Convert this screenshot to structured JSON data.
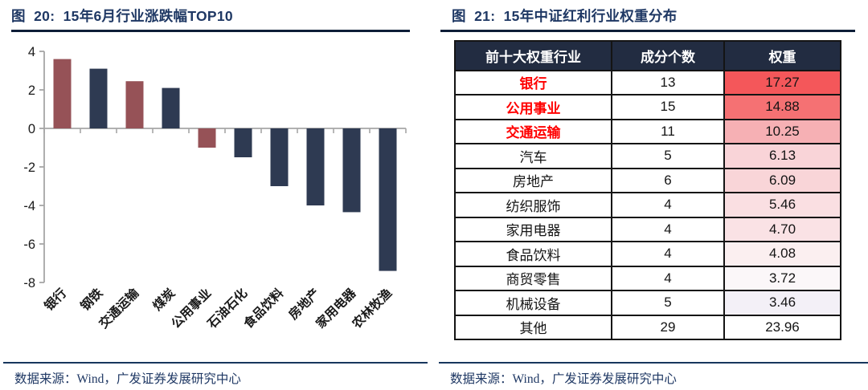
{
  "left_panel": {
    "title": "图  20:  15年6月行业涨跌幅TOP10",
    "source": "数据来源：Wind，广发证券发展研究中心"
  },
  "right_panel": {
    "title": "图  21:  15年中证红利行业权重分布",
    "source": "数据来源：Wind，广发证券发展研究中心"
  },
  "colors": {
    "title_navy": "#1f3864",
    "rule_dark": "#0e1e38",
    "source_rule_navy": "#17365d",
    "axis_gray": "#a6a6a6",
    "tick_label": "#1a1a1a",
    "bar_navy": "#2e3a52",
    "bar_red": "#965257",
    "table_header_bg": "#222c41",
    "table_border": "#141414",
    "highlight_red": "#ff0000"
  },
  "chart_data": [
    {
      "type": "bar",
      "title": "15年6月行业涨跌幅TOP10",
      "categories": [
        "银行",
        "钢铁",
        "交通运输",
        "煤炭",
        "公用事业",
        "石油石化",
        "食品饮料",
        "房地产",
        "家用电器",
        "农林牧渔"
      ],
      "values": [
        3.6,
        3.1,
        2.45,
        2.1,
        -1.0,
        -1.5,
        -3.0,
        -4.0,
        -4.35,
        -7.4
      ],
      "bar_colors": [
        "#965257",
        "#2e3a52",
        "#965257",
        "#2e3a52",
        "#965257",
        "#2e3a52",
        "#2e3a52",
        "#2e3a52",
        "#2e3a52",
        "#2e3a52"
      ],
      "xlabel": "",
      "ylabel": "",
      "ylim": [
        -8,
        4
      ],
      "yticks": [
        4,
        2,
        0,
        -2,
        -4,
        -6,
        -8
      ],
      "grid": false,
      "legend": false
    },
    {
      "type": "table",
      "title": "15年中证红利行业权重分布",
      "headers": [
        "前十大权重行业",
        "成分个数",
        "权重"
      ],
      "rows": [
        {
          "industry": "银行",
          "count": "13",
          "weight": "17.27",
          "highlight": true,
          "weight_bg": "#f4575a"
        },
        {
          "industry": "公用事业",
          "count": "15",
          "weight": "14.88",
          "highlight": true,
          "weight_bg": "#f57173"
        },
        {
          "industry": "交通运输",
          "count": "11",
          "weight": "10.25",
          "highlight": true,
          "weight_bg": "#f6b0b4"
        },
        {
          "industry": "汽车",
          "count": "5",
          "weight": "6.13",
          "highlight": false,
          "weight_bg": "#f9d4d8"
        },
        {
          "industry": "房地产",
          "count": "6",
          "weight": "6.09",
          "highlight": false,
          "weight_bg": "#f9d5d8"
        },
        {
          "industry": "纺织服饰",
          "count": "4",
          "weight": "5.46",
          "highlight": false,
          "weight_bg": "#fadfe2"
        },
        {
          "industry": "家用电器",
          "count": "4",
          "weight": "4.70",
          "highlight": false,
          "weight_bg": "#fae2e5"
        },
        {
          "industry": "食品饮料",
          "count": "4",
          "weight": "4.08",
          "highlight": false,
          "weight_bg": "#fbeff0"
        },
        {
          "industry": "商贸零售",
          "count": "4",
          "weight": "3.72",
          "highlight": false,
          "weight_bg": "#fbf7f9"
        },
        {
          "industry": "机械设备",
          "count": "5",
          "weight": "3.46",
          "highlight": false,
          "weight_bg": "#f3f0f7"
        },
        {
          "industry": "其他",
          "count": "29",
          "weight": "23.96",
          "highlight": false,
          "weight_bg": "#ffffff"
        }
      ]
    }
  ]
}
